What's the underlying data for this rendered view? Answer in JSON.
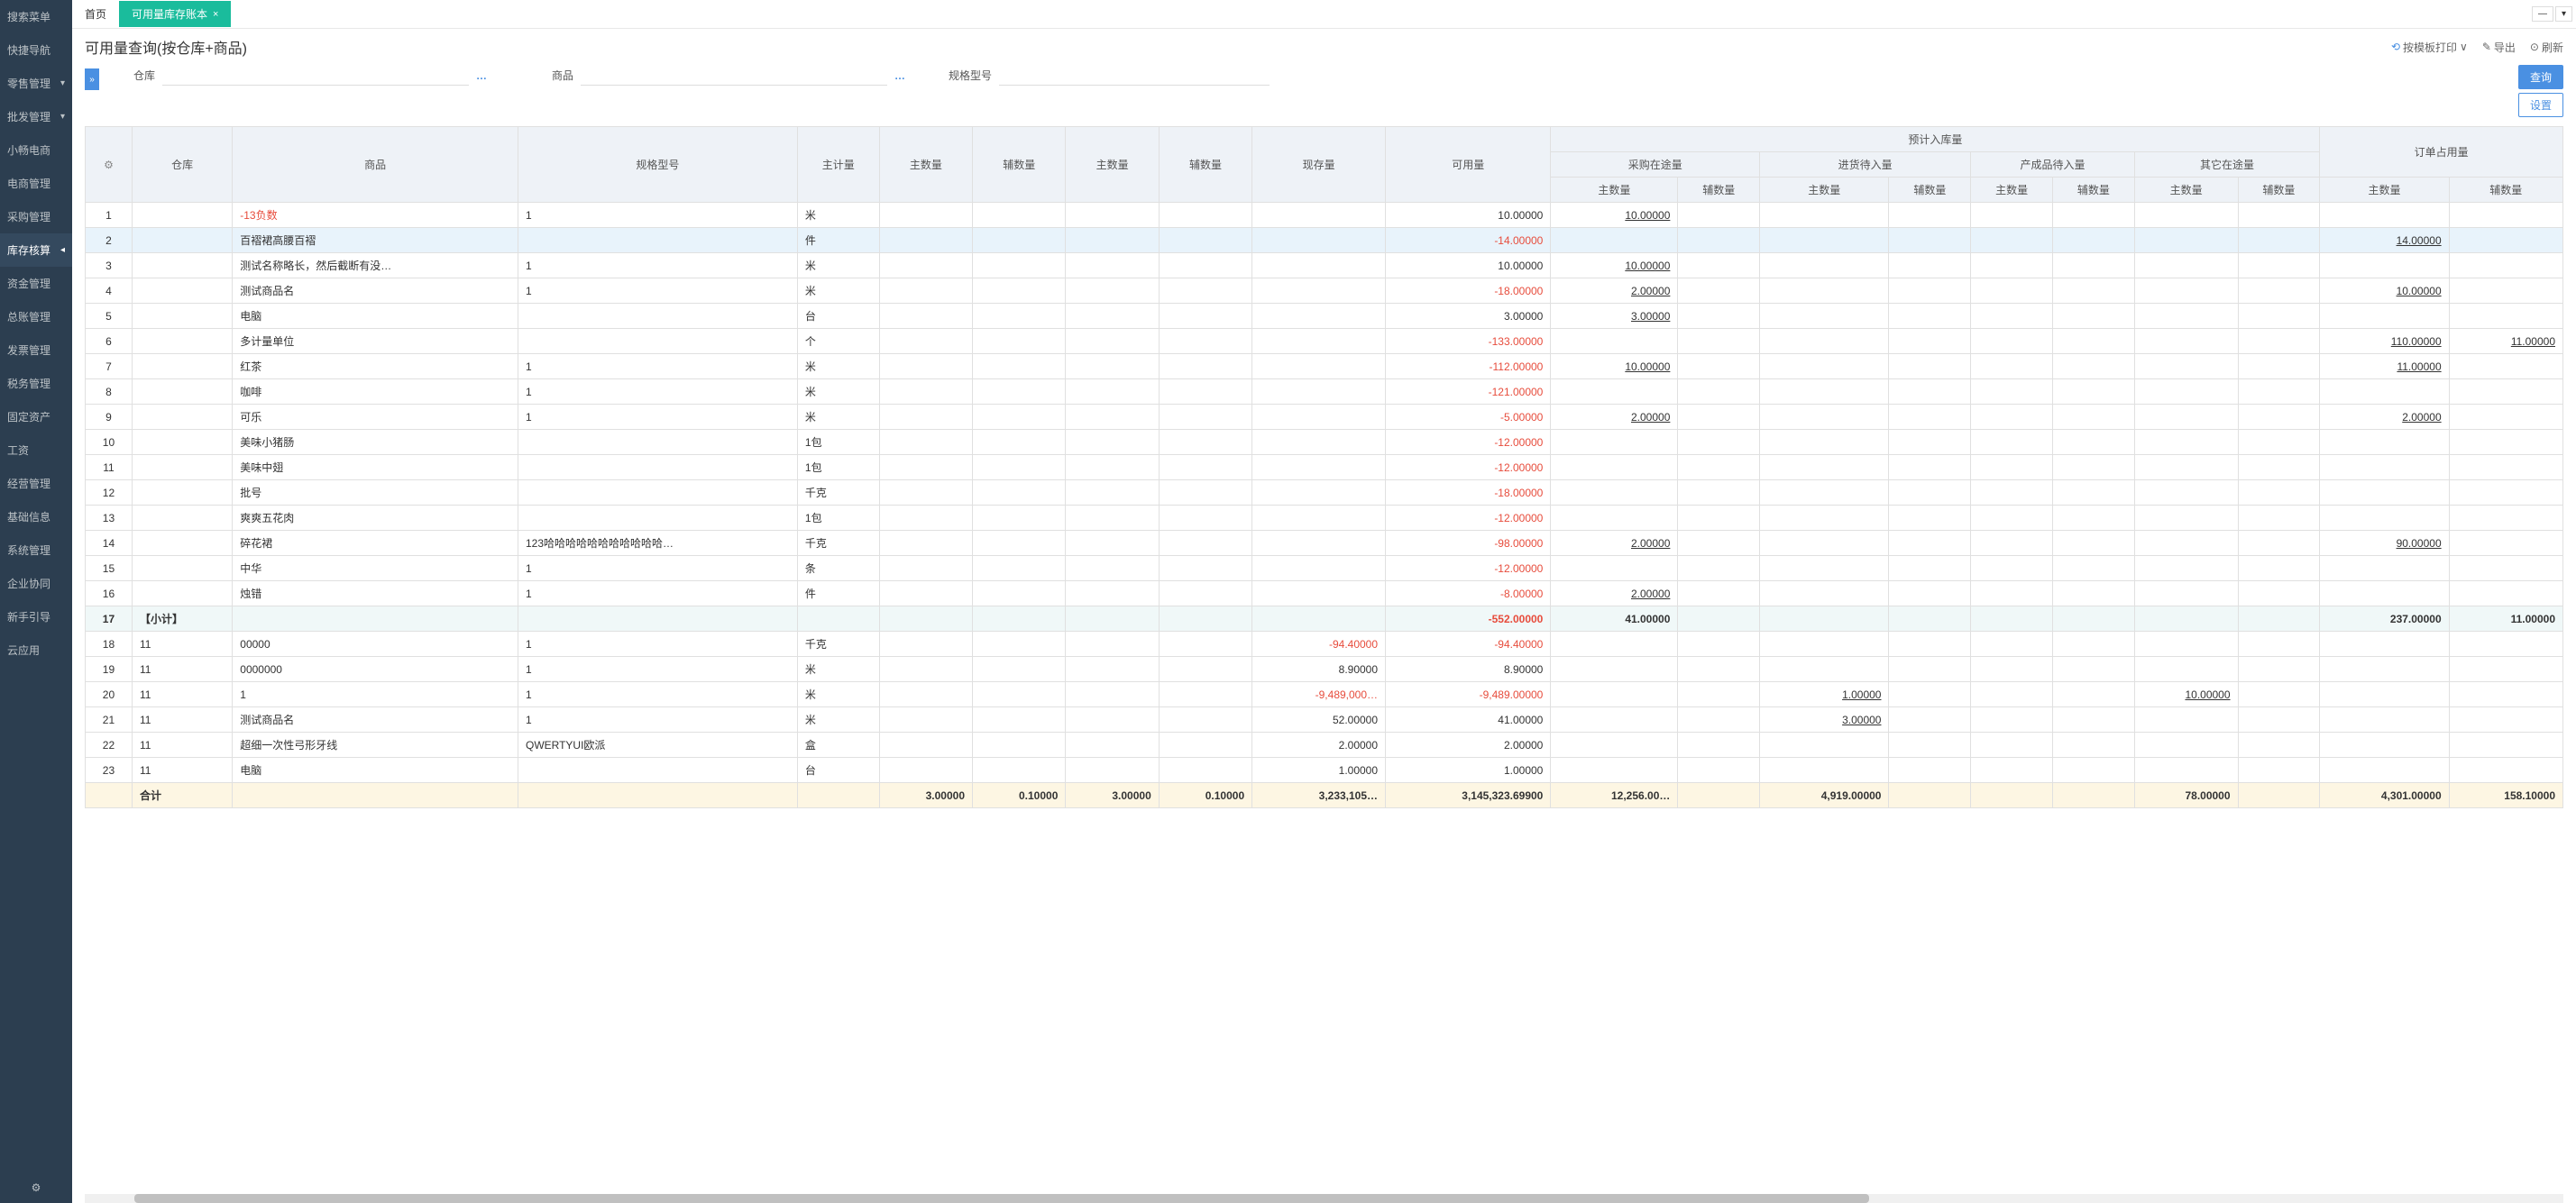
{
  "sidebar": {
    "items": [
      {
        "label": "搜索菜单",
        "active": false,
        "arrow": false
      },
      {
        "label": "快捷导航",
        "active": false,
        "arrow": false
      },
      {
        "label": "零售管理",
        "active": false,
        "arrow": true
      },
      {
        "label": "批发管理",
        "active": false,
        "arrow": true
      },
      {
        "label": "小畅电商",
        "active": false,
        "arrow": false
      },
      {
        "label": "电商管理",
        "active": false,
        "arrow": false
      },
      {
        "label": "采购管理",
        "active": false,
        "arrow": false
      },
      {
        "label": "库存核算",
        "active": true,
        "arrow": false
      },
      {
        "label": "资金管理",
        "active": false,
        "arrow": false
      },
      {
        "label": "总账管理",
        "active": false,
        "arrow": false
      },
      {
        "label": "发票管理",
        "active": false,
        "arrow": false
      },
      {
        "label": "税务管理",
        "active": false,
        "arrow": false
      },
      {
        "label": "固定资产",
        "active": false,
        "arrow": false
      },
      {
        "label": "工资",
        "active": false,
        "arrow": false
      },
      {
        "label": "经营管理",
        "active": false,
        "arrow": false
      },
      {
        "label": "基础信息",
        "active": false,
        "arrow": false
      },
      {
        "label": "系统管理",
        "active": false,
        "arrow": false
      },
      {
        "label": "企业协同",
        "active": false,
        "arrow": false
      },
      {
        "label": "新手引导",
        "active": false,
        "arrow": false
      },
      {
        "label": "云应用",
        "active": false,
        "arrow": false
      }
    ]
  },
  "tabs": {
    "home": "首页",
    "active": "可用量库存账本"
  },
  "page": {
    "title": "可用量查询(按仓库+商品)"
  },
  "toolbar": {
    "print": "按模板打印",
    "export": "导出",
    "refresh": "刷新"
  },
  "filter": {
    "warehouse_label": "仓库",
    "product_label": "商品",
    "spec_label": "规格型号",
    "query_btn": "查询",
    "settings_btn": "设置"
  },
  "columns": {
    "gear": "⚙",
    "warehouse": "仓库",
    "product": "商品",
    "spec": "规格型号",
    "main_unit": "主计量",
    "main_qty": "主数量",
    "aux_qty": "辅数量",
    "main_qty2": "主数量",
    "aux_qty2": "辅数量",
    "stock": "现存量",
    "available": "可用量",
    "expected_in": "预计入库量",
    "purchase_transit": "采购在途量",
    "inbound_pending": "进货待入量",
    "finished_pending": "产成品待入量",
    "other_transit": "其它在途量",
    "order_occupy": "订单占用量",
    "sub_main": "主数量",
    "sub_aux": "辅数量"
  },
  "rows": [
    {
      "n": "1",
      "wh": "",
      "prod": "-13负数",
      "prod_neg": true,
      "spec": "1",
      "unit": "米",
      "avail": "10.00000",
      "purch": "10.00000",
      "purch_u": true
    },
    {
      "n": "2",
      "wh": "",
      "prod": "百褶裙高腰百褶",
      "spec": "",
      "unit": "件",
      "avail": "-14.00000",
      "avail_neg": true,
      "occ": "14.00000",
      "occ_u": true,
      "hl": true
    },
    {
      "n": "3",
      "wh": "",
      "prod": "测试名称略长，然后截断有没…",
      "spec": "1",
      "unit": "米",
      "avail": "10.00000",
      "purch": "10.00000",
      "purch_u": true
    },
    {
      "n": "4",
      "wh": "",
      "prod": "测试商品名",
      "spec": "1",
      "unit": "米",
      "avail": "-18.00000",
      "avail_neg": true,
      "purch": "2.00000",
      "purch_u": true,
      "occ": "10.00000",
      "occ_u": true
    },
    {
      "n": "5",
      "wh": "",
      "prod": "电脑",
      "spec": "",
      "unit": "台",
      "avail": "3.00000",
      "purch": "3.00000",
      "purch_u": true
    },
    {
      "n": "6",
      "wh": "",
      "prod": "多计量单位",
      "spec": "",
      "unit": "个",
      "avail": "-133.00000",
      "avail_neg": true,
      "occ": "110.00000",
      "occ_u": true,
      "occ2": "11.00000",
      "occ2_u": true
    },
    {
      "n": "7",
      "wh": "",
      "prod": "红茶",
      "spec": "1",
      "unit": "米",
      "avail": "-112.00000",
      "avail_neg": true,
      "purch": "10.00000",
      "purch_u": true,
      "occ": "11.00000",
      "occ_u": true
    },
    {
      "n": "8",
      "wh": "",
      "prod": "咖啡",
      "spec": "1",
      "unit": "米",
      "avail": "-121.00000",
      "avail_neg": true
    },
    {
      "n": "9",
      "wh": "",
      "prod": "可乐",
      "spec": "1",
      "unit": "米",
      "avail": "-5.00000",
      "avail_neg": true,
      "purch": "2.00000",
      "purch_u": true,
      "occ": "2.00000",
      "occ_u": true
    },
    {
      "n": "10",
      "wh": "",
      "prod": "美味小猪肠",
      "spec": "",
      "unit": "1包",
      "avail": "-12.00000",
      "avail_neg": true
    },
    {
      "n": "11",
      "wh": "",
      "prod": "美味中翅",
      "spec": "",
      "unit": "1包",
      "avail": "-12.00000",
      "avail_neg": true
    },
    {
      "n": "12",
      "wh": "",
      "prod": "批号",
      "spec": "",
      "unit": "千克",
      "avail": "-18.00000",
      "avail_neg": true
    },
    {
      "n": "13",
      "wh": "",
      "prod": "爽爽五花肉",
      "spec": "",
      "unit": "1包",
      "avail": "-12.00000",
      "avail_neg": true
    },
    {
      "n": "14",
      "wh": "",
      "prod": "碎花裙",
      "spec": "123哈哈哈哈哈哈哈哈哈哈哈…",
      "unit": "千克",
      "avail": "-98.00000",
      "avail_neg": true,
      "purch": "2.00000",
      "purch_u": true,
      "occ": "90.00000",
      "occ_u": true
    },
    {
      "n": "15",
      "wh": "",
      "prod": "中华",
      "spec": "1",
      "unit": "条",
      "avail": "-12.00000",
      "avail_neg": true
    },
    {
      "n": "16",
      "wh": "",
      "prod": "烛错",
      "spec": "1",
      "unit": "件",
      "avail": "-8.00000",
      "avail_neg": true,
      "purch": "2.00000",
      "purch_u": true
    },
    {
      "n": "17",
      "wh": "【小计】",
      "sub": true,
      "avail": "-552.00000",
      "avail_neg": true,
      "purch": "41.00000",
      "occ": "237.00000",
      "occ2": "11.00000"
    },
    {
      "n": "18",
      "wh": "11",
      "prod": "00000",
      "spec": "1",
      "unit": "千克",
      "stock": "-94.40000",
      "stock_neg": true,
      "avail": "-94.40000",
      "avail_neg": true
    },
    {
      "n": "19",
      "wh": "11",
      "prod": "0000000",
      "spec": "1",
      "unit": "米",
      "stock": "8.90000",
      "avail": "8.90000"
    },
    {
      "n": "20",
      "wh": "11",
      "prod": "1",
      "spec": "1",
      "unit": "米",
      "stock": "-9,489,000…",
      "stock_neg": true,
      "avail": "-9,489.00000",
      "avail_neg": true,
      "inb": "1.00000",
      "inb_u": true,
      "oth": "10.00000",
      "oth_u": true
    },
    {
      "n": "21",
      "wh": "11",
      "prod": "测试商品名",
      "spec": "1",
      "unit": "米",
      "stock": "52.00000",
      "avail": "41.00000",
      "inb": "3.00000",
      "inb_u": true
    },
    {
      "n": "22",
      "wh": "11",
      "prod": "超细一次性弓形牙线",
      "spec": "QWERTYUI欧派",
      "unit": "盒",
      "stock": "2.00000",
      "avail": "2.00000"
    },
    {
      "n": "23",
      "wh": "11",
      "prod": "电脑",
      "spec": "",
      "unit": "台",
      "stock": "1.00000",
      "avail": "1.00000"
    }
  ],
  "total": {
    "label": "合计",
    "main_qty": "3.00000",
    "aux_qty": "0.10000",
    "main_qty2": "3.00000",
    "aux_qty2": "0.10000",
    "stock": "3,233,105…",
    "avail": "3,145,323.69900",
    "purch": "12,256.00…",
    "inb": "4,919.00000",
    "oth": "78.00000",
    "occ": "4,301.00000",
    "occ2": "158.10000"
  }
}
